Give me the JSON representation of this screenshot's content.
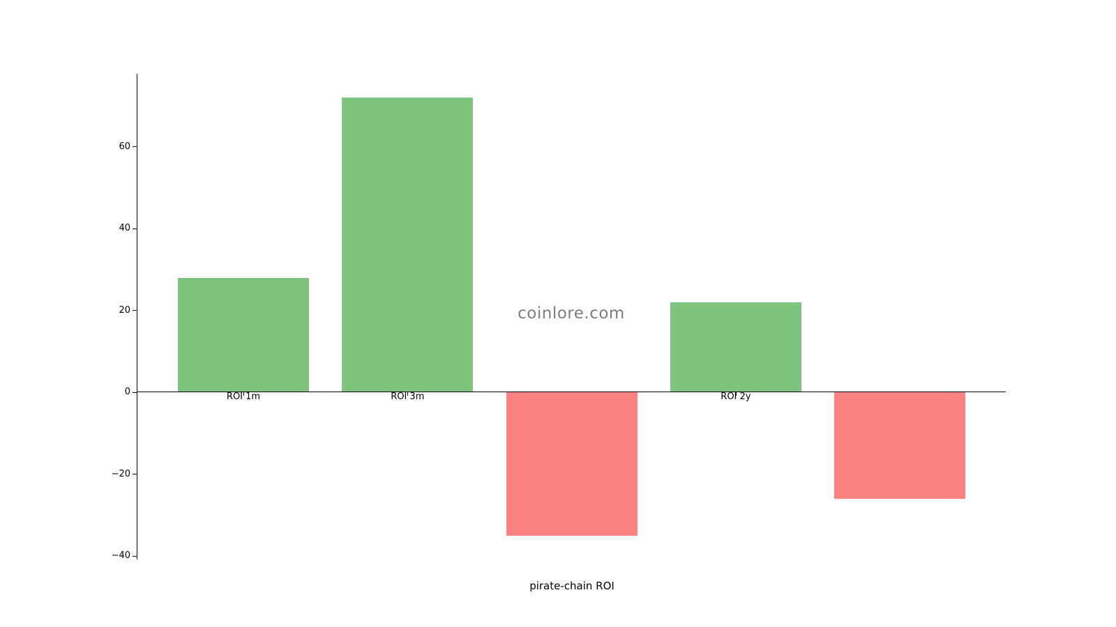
{
  "watermark": "coinlore.com",
  "chart_data": {
    "type": "bar",
    "title": "pirate-chain ROI",
    "categories": [
      "ROI 1m",
      "ROI 3m",
      "",
      "ROI 2y",
      ""
    ],
    "values": [
      28,
      72,
      -35,
      22,
      -26
    ],
    "xlabel": "",
    "ylabel": "",
    "ylim": [
      -40.4,
      77.4
    ],
    "y_tick_values": [
      60,
      40,
      20,
      0,
      -20,
      -40
    ],
    "y_tick_labels": [
      "60",
      "40",
      "20",
      "0",
      "−20",
      "−40"
    ],
    "grid": false,
    "legend": "none",
    "colors": {
      "positive_bar": "#7ec47f",
      "negative_bar": "#fc8181",
      "axis": "#000000",
      "watermark": "#7d7d7d"
    },
    "layout_hints": {
      "x_axis_drawn_at_zero": true,
      "x_tick_labels_of_negative_bars_hidden_behind_bars": true,
      "spines_shown": [
        "left",
        "zero-line"
      ]
    }
  }
}
